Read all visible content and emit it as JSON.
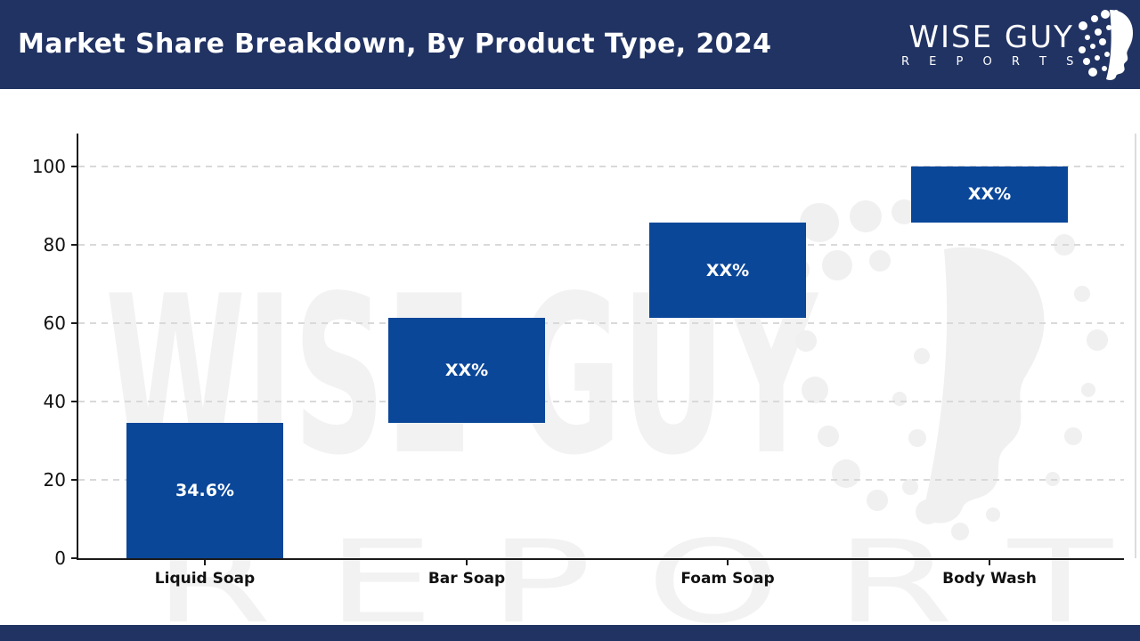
{
  "header": {
    "title": "Market Share Breakdown, By Product Type, 2024",
    "logo": {
      "line1": "WISE GUY",
      "line2": "R E P O R T S"
    }
  },
  "watermark": {
    "line1": "WISE GUY",
    "line2": "R E P O R T S"
  },
  "chart_data": {
    "type": "bar",
    "subtype": "floating-waterfall",
    "title": "Market Share Breakdown, By Product Type, 2024",
    "categories": [
      "Liquid Soap",
      "Bar Soap",
      "Foam Soap",
      "Body Wash"
    ],
    "segments": [
      {
        "category": "Liquid Soap",
        "start": 0,
        "end": 34.6,
        "value": 34.6,
        "label": "34.6%"
      },
      {
        "category": "Bar Soap",
        "start": 34.6,
        "end": 61.3,
        "value": 26.7,
        "label": "XX%"
      },
      {
        "category": "Foam Soap",
        "start": 61.3,
        "end": 85.7,
        "value": 24.4,
        "label": "XX%"
      },
      {
        "category": "Body Wash",
        "start": 85.7,
        "end": 100,
        "value": 14.3,
        "label": "XX%"
      }
    ],
    "xlabel": "",
    "ylabel": "",
    "ylim": [
      0,
      100
    ],
    "yticks": [
      0,
      20,
      40,
      60,
      80,
      100
    ],
    "grid": "horizontal-dashed",
    "legend": "none",
    "bar_color": "#0a4799",
    "bar_label_color": "#ffffff"
  },
  "colors": {
    "header_bg": "#213363",
    "footer_bg": "#213363",
    "bar": "#0a4799",
    "bar_label": "#ffffff",
    "watermark": "#f2f2f2",
    "grid": "#d9d9d9",
    "axis": "#1a1a1a",
    "text": "#111111",
    "title": "#ffffff"
  }
}
